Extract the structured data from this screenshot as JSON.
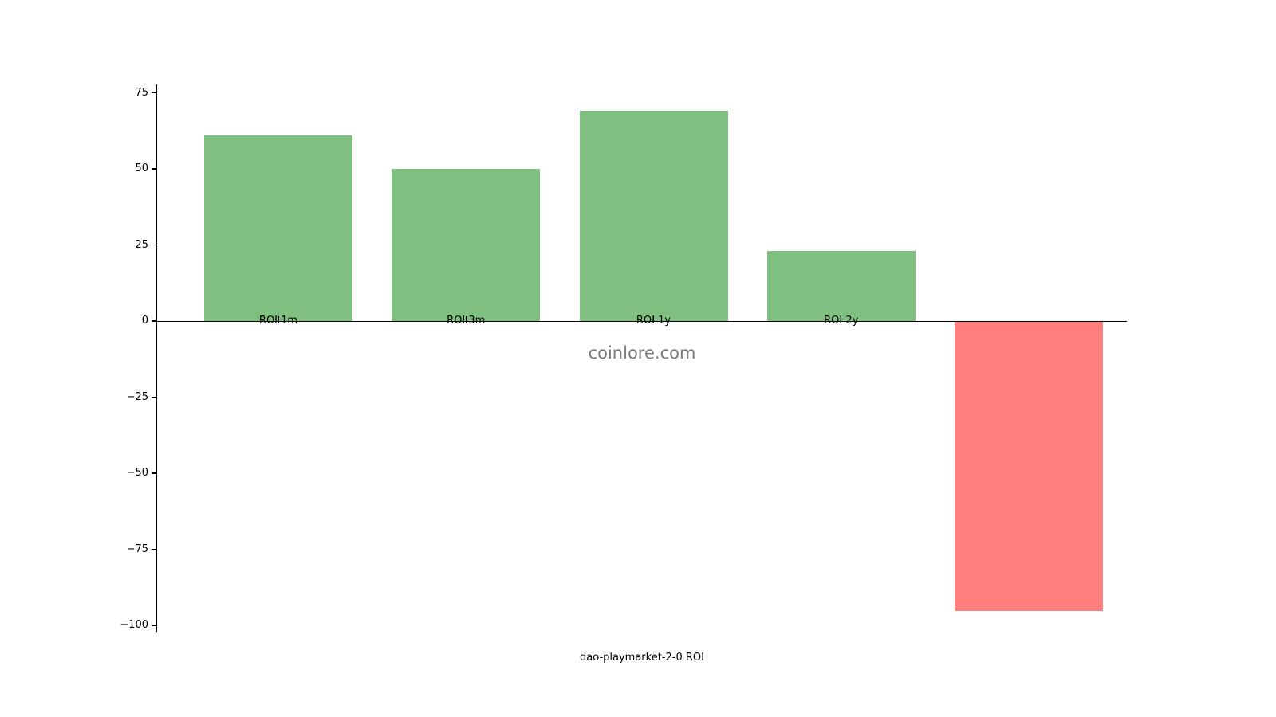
{
  "page": {
    "background_color": "#ffffff"
  },
  "chart_data": {
    "type": "bar",
    "title": "dao-playmarket-2-0 ROI",
    "watermark": "coinlore.com",
    "categories": [
      "ROI 1m",
      "ROI 3m",
      "ROI 1y",
      "ROI 2y",
      ""
    ],
    "values": [
      61,
      50,
      69,
      23,
      -95
    ],
    "bars": [
      {
        "label": "ROI 1m",
        "value": 61,
        "color": "#7fbf7f"
      },
      {
        "label": "ROI 3m",
        "value": 50,
        "color": "#7fbf7f"
      },
      {
        "label": "ROI 1y",
        "value": 69,
        "color": "#7fbf7f"
      },
      {
        "label": "ROI 2y",
        "value": 23,
        "color": "#7fbf7f"
      },
      {
        "label": "",
        "value": -95,
        "color": "#ff7f7f"
      }
    ],
    "positive_color": "#7fbf7f",
    "negative_color": "#ff7f7f",
    "axis_color": "#000000",
    "watermark_color": "#7b7b7b",
    "yticks": [
      {
        "label": "75",
        "value": 75
      },
      {
        "label": "50",
        "value": 50
      },
      {
        "label": "25",
        "value": 25
      },
      {
        "label": "0",
        "value": 0
      },
      {
        "label": "−25",
        "value": -25
      },
      {
        "label": "−50",
        "value": -50
      },
      {
        "label": "−75",
        "value": -75
      },
      {
        "label": "−100",
        "value": -100
      }
    ],
    "ylim": [
      -103,
      78
    ],
    "xlabel": "",
    "ylabel": "",
    "grid": false,
    "legend": null
  }
}
